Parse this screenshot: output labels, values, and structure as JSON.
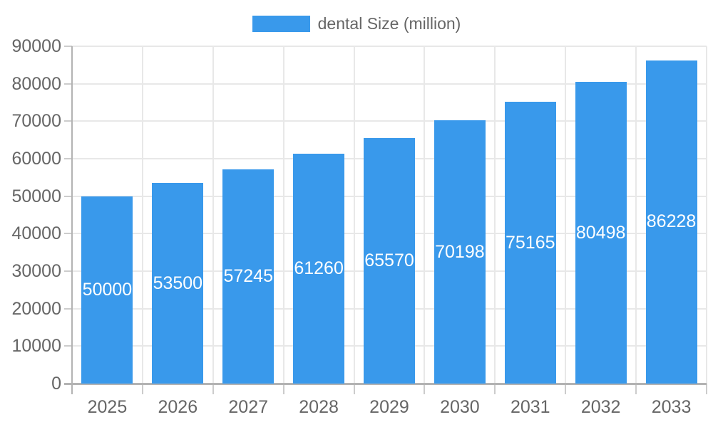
{
  "chart_data": {
    "type": "bar",
    "title": "",
    "legend": "dental Size (million)",
    "legend_position": "top",
    "series": [
      {
        "name": "dental Size (million)",
        "values": [
          50000,
          53500,
          57245,
          61260,
          65570,
          70198,
          75165,
          80498,
          86228
        ]
      }
    ],
    "categories": [
      "2025",
      "2026",
      "2027",
      "2028",
      "2029",
      "2030",
      "2031",
      "2032",
      "2033"
    ],
    "xlabel": "",
    "ylabel": "",
    "ylim": [
      0,
      90000
    ],
    "ytick_step": 10000,
    "yticks": [
      "0",
      "10000",
      "20000",
      "30000",
      "40000",
      "50000",
      "60000",
      "70000",
      "80000",
      "90000"
    ],
    "grid": "on",
    "value_labels": "inside-center",
    "colors": {
      "bar": "#3999EB",
      "bar_value_text": "#ffffff",
      "axis_text": "#666666",
      "gridline": "#e8e8e8",
      "axis_line": "#b3b3b3",
      "tick": "#cccccc",
      "background": "#ffffff"
    }
  }
}
